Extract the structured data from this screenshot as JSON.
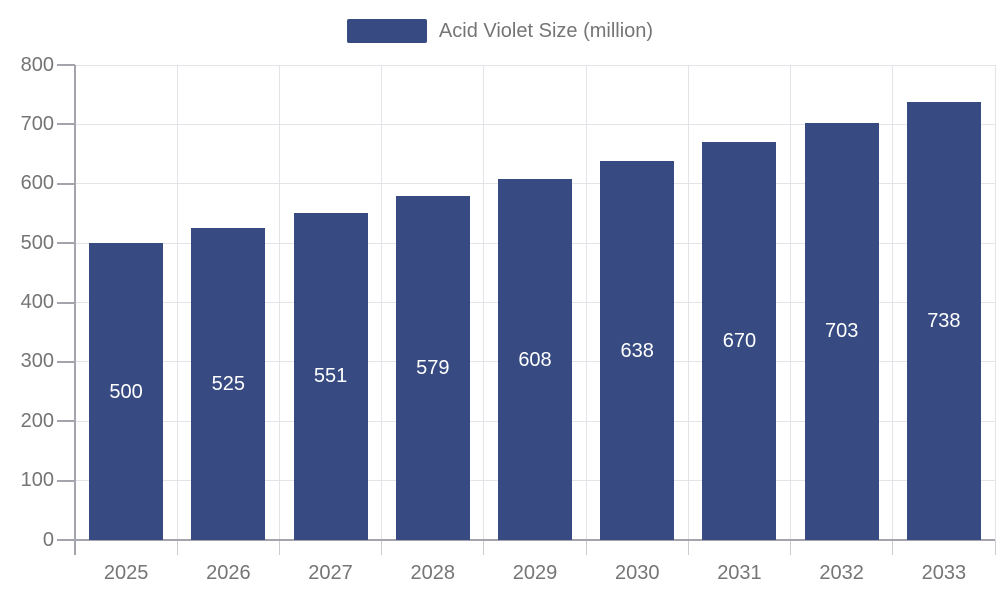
{
  "chart_data": {
    "type": "bar",
    "title": "",
    "legend": "Acid Violet Size (million)",
    "series_name": "Acid Violet Size (million)",
    "categories": [
      "2025",
      "2026",
      "2027",
      "2028",
      "2029",
      "2030",
      "2031",
      "2032",
      "2033"
    ],
    "values": [
      500,
      525,
      551,
      579,
      608,
      638,
      670,
      703,
      738
    ],
    "xlabel": "",
    "ylabel": "",
    "ylim": [
      0,
      800
    ],
    "yticks": [
      0,
      100,
      200,
      300,
      400,
      500,
      600,
      700,
      800
    ],
    "grid": true,
    "legend_position": "top-center",
    "bar_color": "#374B82",
    "colors": {
      "bar": "#374B82",
      "bar_value_label": "#ffffff",
      "axis_text": "#757575",
      "axis_line": "#a4a4ac",
      "gridline": "#e3e3e8",
      "boundary_tick": "#cbcbd2",
      "background": "#ffffff"
    }
  }
}
